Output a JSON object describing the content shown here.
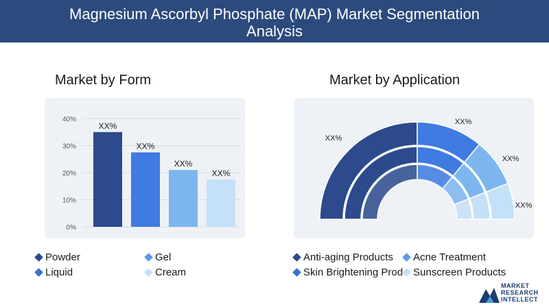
{
  "header": {
    "title_line1": "Magnesium Ascorbyl Phosphate (MAP) Market Segmentation",
    "title_line2": "Analysis"
  },
  "sections": {
    "form_title": "Market by Form",
    "application_title": "Market by Application"
  },
  "colors": {
    "header_bg": "#2c4a7c",
    "series": [
      "#2c4a8c",
      "#3f7be0",
      "#7db6ef",
      "#c4e1f8"
    ]
  },
  "chart_data": [
    {
      "type": "bar",
      "title": "Market by Form",
      "categories": [
        "Powder",
        "Liquid",
        "Gel",
        "Cream"
      ],
      "values": [
        35,
        27.5,
        21,
        17.5
      ],
      "data_labels": [
        "XX%",
        "XX%",
        "XX%",
        "XX%"
      ],
      "y_ticks": [
        "0%",
        "10%",
        "20%",
        "30%",
        "40%"
      ],
      "ylim": [
        0,
        40
      ],
      "grid": true,
      "legend": [
        {
          "label": "Powder",
          "color": "#2c4a8c"
        },
        {
          "label": "Gel",
          "color": "#5b9be6"
        },
        {
          "label": "Liquid",
          "color": "#3a6fd6"
        },
        {
          "label": "Cream",
          "color": "#c4e1f8"
        }
      ]
    },
    {
      "type": "pie",
      "title": "Market by Application",
      "categories": [
        "Anti-aging Products",
        "Acne Treatment",
        "Skin Brightening Prod",
        "Sunscreen Products"
      ],
      "values": [
        50,
        22,
        16,
        12
      ],
      "data_labels": [
        "XX%",
        "XX%",
        "XX%",
        "XX%"
      ],
      "legend": [
        {
          "label": "Anti-aging Products",
          "color": "#2c4a8c"
        },
        {
          "label": "Acne Treatment",
          "color": "#5b9be6"
        },
        {
          "label": "Skin Brightening Prod",
          "color": "#3a6fd6"
        },
        {
          "label": "Sunscreen Products",
          "color": "#c4e1f8"
        }
      ]
    }
  ],
  "logo": {
    "line1": "MARKET",
    "line2": "RESEARCH",
    "line3": "INTELLECT"
  }
}
